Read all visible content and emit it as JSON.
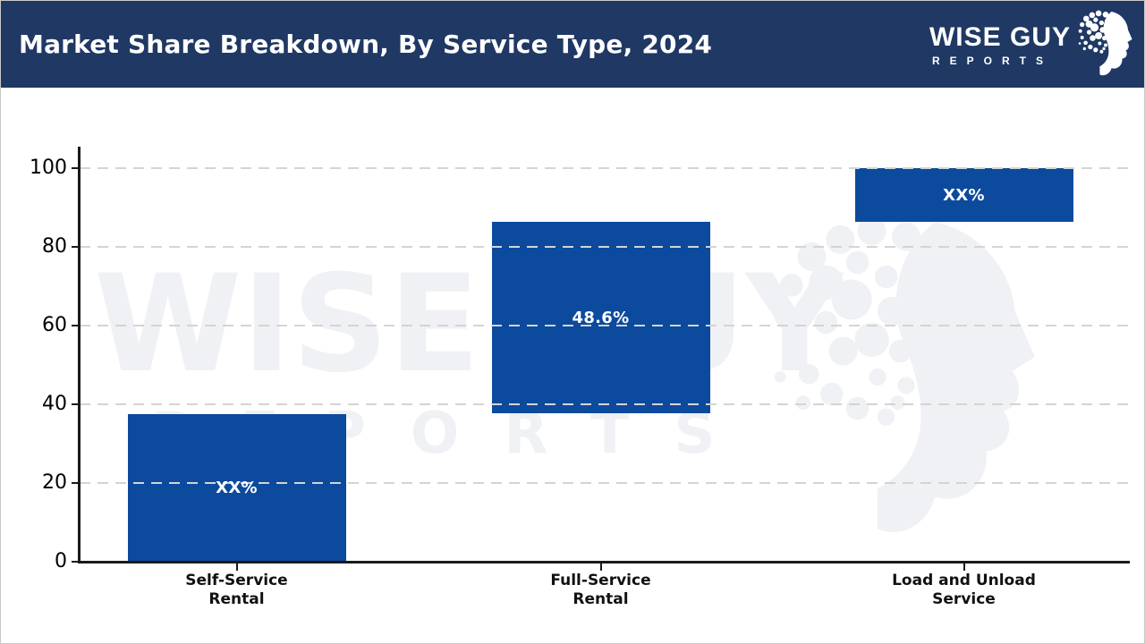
{
  "header": {
    "title": "Market Share Breakdown, By Service Type, 2024"
  },
  "logo": {
    "name": "WISE GUY",
    "subtitle": "REPORTS"
  },
  "watermark": {
    "name": "WISE GUY",
    "subtitle": "REPORTS"
  },
  "colors": {
    "header_bg": "#1F3864",
    "bar_blue": "#0C4A9E",
    "grid_gray": "#D4D4D4",
    "axis_dark": "#1A1A1A",
    "watermark_gray": "#F0F1F4"
  },
  "chart_data": {
    "type": "bar",
    "subtype": "stacked-waterfall",
    "title": "Market Share Breakdown, By Service Type, 2024",
    "categories": [
      "Self-Service\nRental",
      "Full-Service\nRental",
      "Load and Unload\nService"
    ],
    "segments": [
      {
        "category": "Self-Service Rental",
        "start": 0,
        "end": 37.5,
        "label": "XX%"
      },
      {
        "category": "Full-Service Rental",
        "start": 37.7,
        "end": 86.3,
        "label": "48.6%"
      },
      {
        "category": "Load and Unload Service",
        "start": 86.3,
        "end": 100,
        "label": "XX%"
      }
    ],
    "xlabel": "",
    "ylabel": "",
    "ylim": [
      0,
      100
    ],
    "yticks": [
      0,
      20,
      40,
      60,
      80,
      100
    ],
    "grid": "horizontal-dashed",
    "legend": "none"
  }
}
